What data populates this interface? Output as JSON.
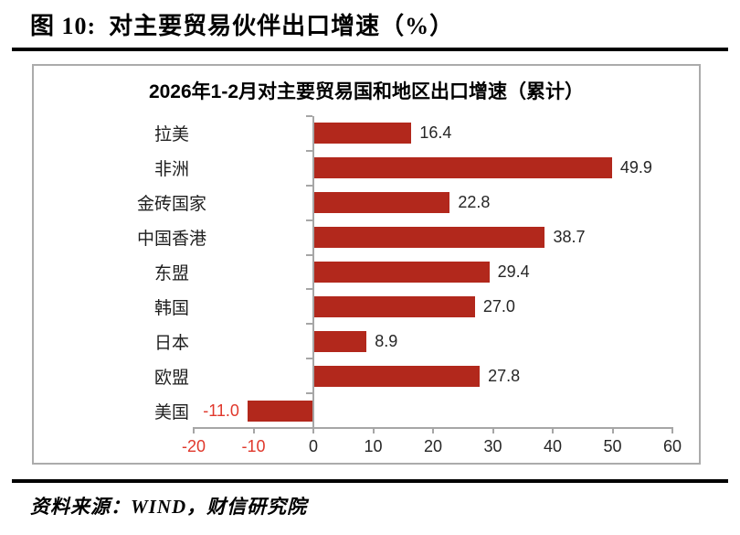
{
  "header": {
    "figure_label": "图 10:",
    "title": "对主要贸易伙伴出口增速（%）"
  },
  "chart_data": {
    "type": "bar",
    "orientation": "horizontal",
    "title": "2026年1-2月对主要贸易国和地区出口增速（累计）",
    "categories": [
      "拉美",
      "非洲",
      "金砖国家",
      "中国香港",
      "东盟",
      "韩国",
      "日本",
      "欧盟",
      "美国"
    ],
    "values": [
      16.4,
      49.9,
      22.8,
      38.7,
      29.4,
      27.0,
      8.9,
      27.8,
      -11.0
    ],
    "value_labels": [
      "16.4",
      "49.9",
      "22.8",
      "38.7",
      "29.4",
      "27.0",
      "8.9",
      "27.8",
      "-11.0"
    ],
    "x_ticks": [
      "-20",
      "-10",
      "0",
      "10",
      "20",
      "30",
      "40",
      "50",
      "60"
    ],
    "xlim": [
      -20,
      60
    ],
    "unit": "%",
    "grid": false,
    "legend": false,
    "colors": {
      "bar": "#B2281C",
      "negative_text": "#E0382C",
      "positive_text": "#262626",
      "axis": "#A6A6A6"
    }
  },
  "footer": {
    "source": "资料来源：WIND，财信研究院"
  }
}
